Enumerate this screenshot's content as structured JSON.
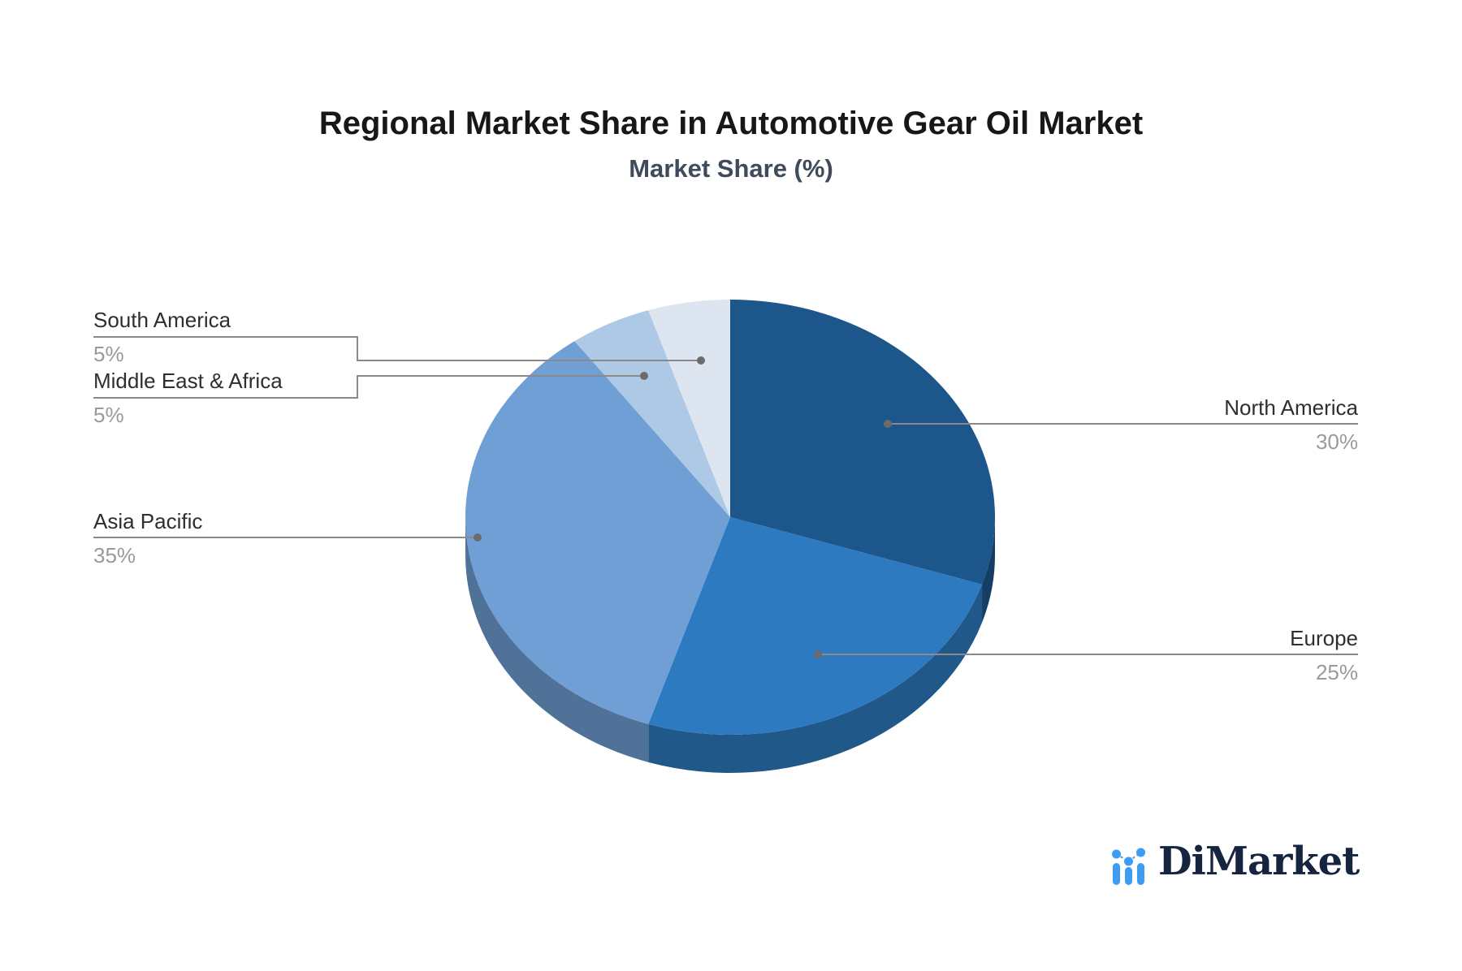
{
  "header": {
    "title": "Regional Market Share in Automotive Gear Oil Market",
    "subtitle": "Market Share (%)"
  },
  "chart_data": {
    "type": "pie",
    "title": "Regional Market Share in Automotive Gear Oil Market",
    "subtitle": "Market Share (%)",
    "unit": "%",
    "effect_3d": true,
    "start_angle_deg": 0,
    "direction": "clockwise",
    "legend_position": "outside-callout-labels",
    "slices": [
      {
        "label": "North America",
        "value": 30,
        "pct_label": "30%",
        "color": "#1c568a"
      },
      {
        "label": "Europe",
        "value": 25,
        "pct_label": "25%",
        "color": "#2e7ac0"
      },
      {
        "label": "Asia Pacific",
        "value": 35,
        "pct_label": "35%",
        "color": "#6f9fd5"
      },
      {
        "label": "Middle East & Africa",
        "value": 5,
        "pct_label": "5%",
        "color": "#aec9e5"
      },
      {
        "label": "South America",
        "value": 5,
        "pct_label": "5%",
        "color": "#dde6f0"
      }
    ],
    "connector_color": "#8a8a8a",
    "connector_dot_color": "#6b6b6b"
  },
  "branding": {
    "logo_text": "DiMarket",
    "logo_icon": "bar-chart-with-dots-icon",
    "logo_bar_color": "#3f9cf3",
    "logo_text_color": "#16253f"
  }
}
